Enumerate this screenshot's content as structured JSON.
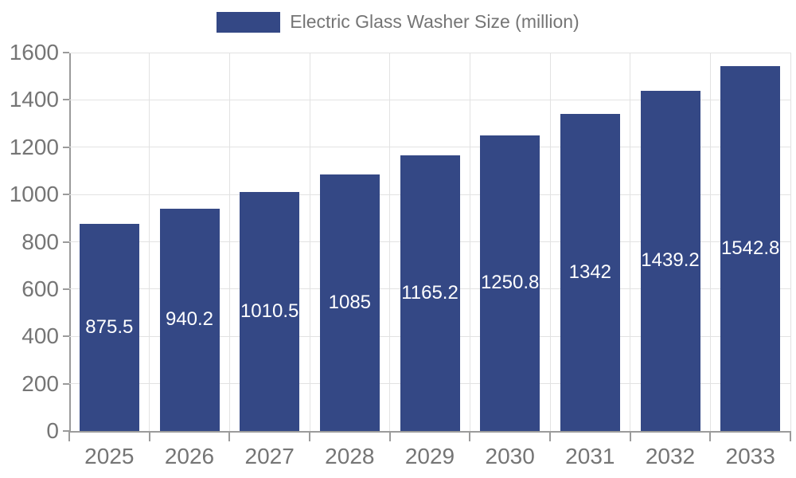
{
  "legend": {
    "label": "Electric Glass Washer Size (million)"
  },
  "chart_data": {
    "type": "bar",
    "title": "Electric Glass Washer Size (million)",
    "series_name": "Electric Glass Washer Size (million)",
    "categories": [
      "2025",
      "2026",
      "2027",
      "2028",
      "2029",
      "2030",
      "2031",
      "2032",
      "2033"
    ],
    "values": [
      875.5,
      940.2,
      1010.5,
      1085,
      1165.2,
      1250.8,
      1342,
      1439.2,
      1542.8
    ],
    "value_labels": [
      "875.5",
      "940.2",
      "1010.5",
      "1085",
      "1165.2",
      "1250.8",
      "1342",
      "1439.2",
      "1542.8"
    ],
    "xlabel": "",
    "ylabel": "",
    "ylim": [
      0,
      1600
    ],
    "yticks": [
      0,
      200,
      400,
      600,
      800,
      1000,
      1200,
      1400,
      1600
    ],
    "grid": true,
    "legend_position": "top-center",
    "colors": {
      "bar": "#344885",
      "bar_value_text": "#ffffff",
      "axis_text": "#757575",
      "legend_text": "#757575",
      "gridline": "#e2e2e2",
      "axis_line": "#9b9b9b"
    }
  }
}
